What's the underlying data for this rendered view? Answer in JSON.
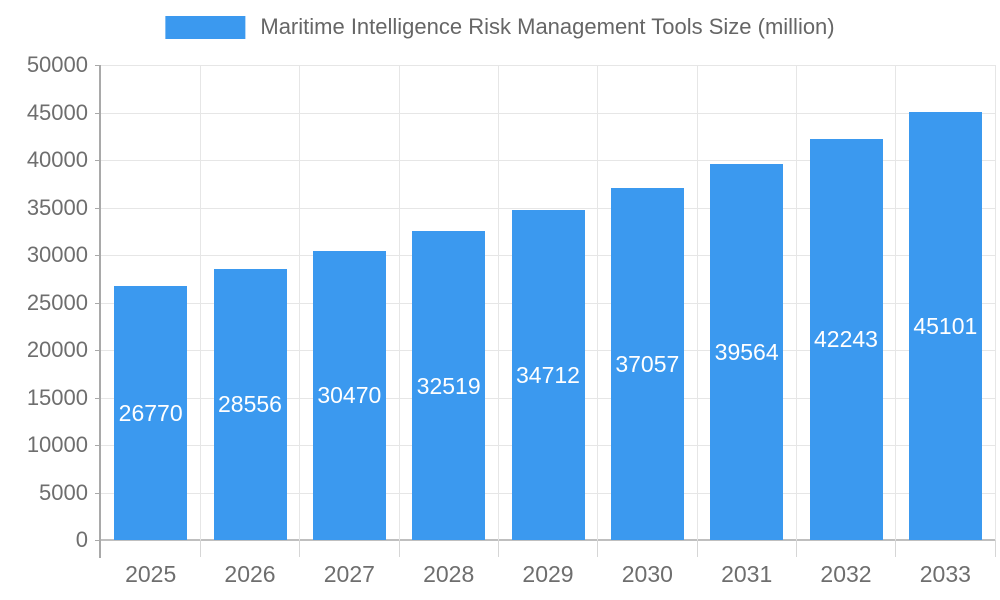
{
  "legend": {
    "label": "Maritime Intelligence Risk Management Tools Size (million)"
  },
  "chart_data": {
    "type": "bar",
    "title": "Maritime Intelligence Risk Management Tools Size (million)",
    "categories": [
      "2025",
      "2026",
      "2027",
      "2028",
      "2029",
      "2030",
      "2031",
      "2032",
      "2033"
    ],
    "values": [
      26770,
      28556,
      30470,
      32519,
      34712,
      37057,
      39564,
      42243,
      45101
    ],
    "xlabel": "",
    "ylabel": "",
    "ylim": [
      0,
      50000
    ],
    "ytick_step": 5000,
    "yticks": [
      0,
      5000,
      10000,
      15000,
      20000,
      25000,
      30000,
      35000,
      40000,
      45000,
      50000
    ],
    "grid": true,
    "legend_position": "top",
    "bar_labels": "inside-centered",
    "colors": {
      "bar": "#3B99EF",
      "bar_label_text": "#FFFFFF",
      "axis_line": "#A9A9A9",
      "zero_line": "#BFBFBF",
      "gridline": "#E6E6E6",
      "boundary_tick": "#D6D6D6",
      "tick_label_text": "#6E6E6E",
      "legend_text": "#666666",
      "background": "#FFFFFF"
    }
  }
}
